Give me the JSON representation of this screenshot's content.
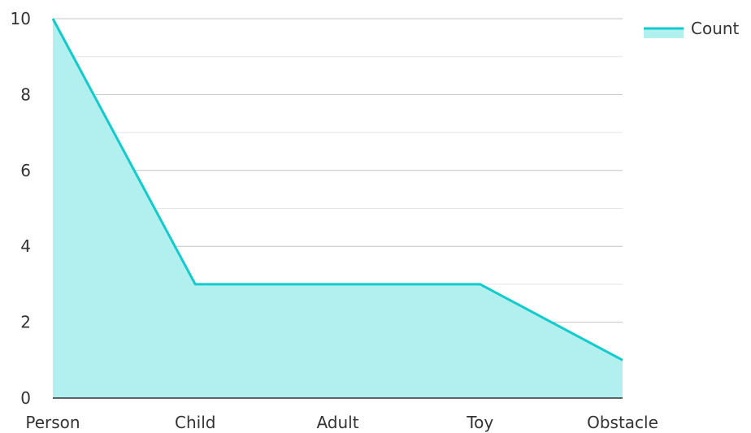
{
  "chart_data": {
    "type": "area",
    "categories": [
      "Person",
      "Child",
      "Adult",
      "Toy",
      "Obstacle"
    ],
    "series": [
      {
        "name": "Count",
        "values": [
          10,
          3,
          3,
          3,
          1
        ]
      }
    ],
    "ylim": [
      0,
      10
    ],
    "yticks": [
      0,
      2,
      4,
      6,
      8,
      10
    ],
    "grid": true,
    "legend": "top-right",
    "colors": {
      "line": "#10cccc",
      "fill": "#b2efef",
      "grid_major": "#c4c4c4",
      "grid_minor": "#e4e4e4",
      "axis": "#333333",
      "text": "#333333"
    }
  }
}
